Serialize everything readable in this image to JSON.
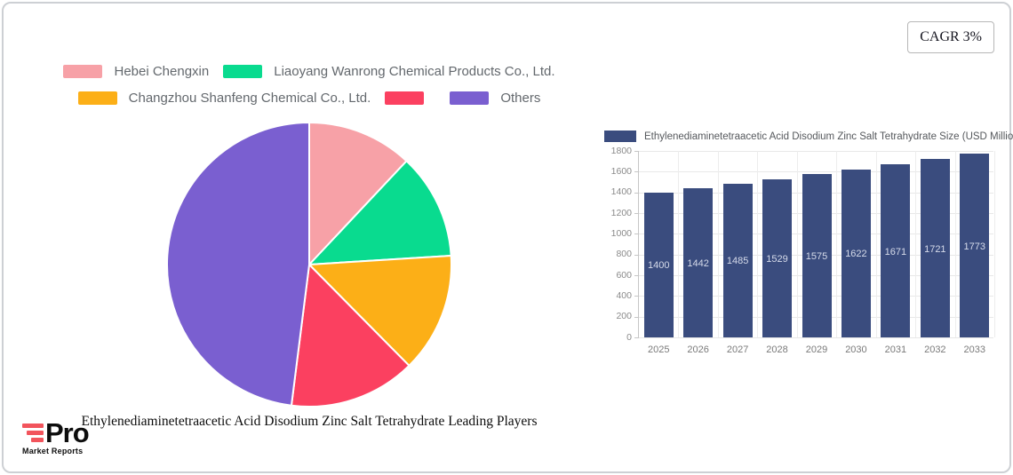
{
  "badge": {
    "label": "CAGR 3%"
  },
  "logo": {
    "brand": "Pro",
    "subtitle": "Market Reports"
  },
  "chart_data": [
    {
      "type": "pie",
      "title": "Ethylenediaminetetraacetic Acid Disodium Zinc Salt Tetrahydrate Leading Players",
      "labels": [
        "Hebei Chengxin",
        "Liaoyang Wanrong Chemical Products Co., Ltd.",
        "Changzhou Shanfeng Chemical Co., Ltd.",
        "",
        "Others"
      ],
      "values_pct": [
        12,
        12,
        13.6,
        14.4,
        48
      ],
      "colors": [
        "#F7A1A7",
        "#09DB8F",
        "#FCAF17",
        "#FB4060",
        "#7A5FD0"
      ],
      "legend_position": "top",
      "start_angle_deg": 0,
      "direction": "clockwise",
      "slice_border_color": "#FFFFFF"
    },
    {
      "type": "bar",
      "series_label": "Ethylenediaminetetraacetic Acid Disodium Zinc Salt Tetrahydrate Size (USD Million)",
      "categories": [
        "2025",
        "2026",
        "2027",
        "2028",
        "2029",
        "2030",
        "2031",
        "2032",
        "2033"
      ],
      "values": [
        1400,
        1442,
        1485,
        1529,
        1575,
        1622,
        1671,
        1721,
        1773
      ],
      "bar_color": "#3A4C7E",
      "value_label_color": "#D6DBEA",
      "ylim": [
        0,
        1800
      ],
      "ytick_step": 200,
      "grid": true,
      "legend_position": "top-left",
      "value_labels": "inside-middle"
    }
  ]
}
